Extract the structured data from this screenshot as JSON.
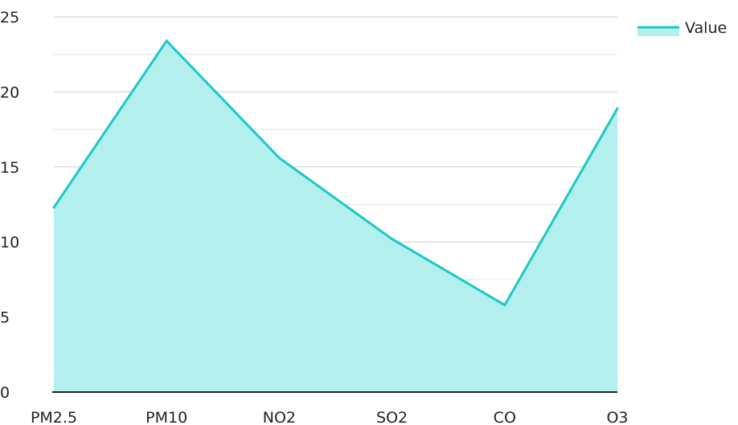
{
  "chart_data": {
    "type": "area",
    "categories": [
      "PM2.5",
      "PM10",
      "NO2",
      "SO2",
      "CO",
      "O3"
    ],
    "series": [
      {
        "name": "Value",
        "values": [
          12.3,
          23.4,
          15.6,
          10.2,
          5.8,
          18.9
        ]
      }
    ],
    "ylim": [
      0,
      25
    ],
    "yticks": [
      0,
      5,
      10,
      15,
      20,
      25
    ],
    "grid": true,
    "legend": "top-right",
    "colors": {
      "line": "#1ec8c8",
      "fill": "#b2efed",
      "grid_major": "#cfcfcf",
      "grid_minor": "#e6e6e6",
      "axis": "#222222",
      "text": "#222222"
    }
  }
}
